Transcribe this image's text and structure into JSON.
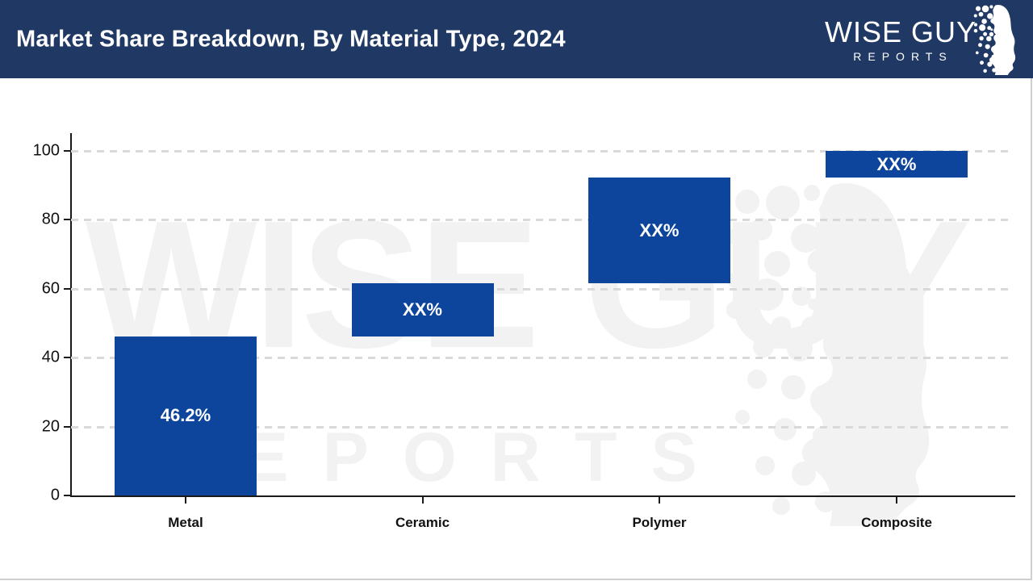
{
  "header": {
    "title": "Market Share Breakdown, By Material Type, 2024",
    "logo": {
      "line1": "WISE GUY",
      "line2": "REPORTS"
    }
  },
  "watermark": {
    "line1": "WISE GUY",
    "line2": "REPORTS"
  },
  "colors": {
    "header_bg": "#1f3864",
    "bar": "#0d459c",
    "bar_label": "#ffffff",
    "grid": "#d9d9d9",
    "axis": "#1a1a1a",
    "tick_label": "#111111",
    "watermark": "#f2f2f2",
    "frame_border": "#cfcfcf"
  },
  "chart_data": {
    "type": "bar",
    "subtype": "waterfall",
    "title": "Market Share Breakdown, By Material Type, 2024",
    "xlabel": "",
    "ylabel": "",
    "categories": [
      "Metal",
      "Ceramic",
      "Polymer",
      "Composite"
    ],
    "segments": [
      {
        "category": "Metal",
        "start": 0,
        "end": 46.2,
        "label": "46.2%"
      },
      {
        "category": "Ceramic",
        "start": 46.2,
        "end": 61.5,
        "label": "XX%"
      },
      {
        "category": "Polymer",
        "start": 61.5,
        "end": 92.2,
        "label": "XX%"
      },
      {
        "category": "Composite",
        "start": 92.2,
        "end": 100,
        "label": "XX%"
      }
    ],
    "ylim": [
      0,
      100
    ],
    "yticks": [
      0,
      20,
      40,
      60,
      80,
      100
    ],
    "grid": "dashed-horizontal",
    "legend": "none"
  }
}
